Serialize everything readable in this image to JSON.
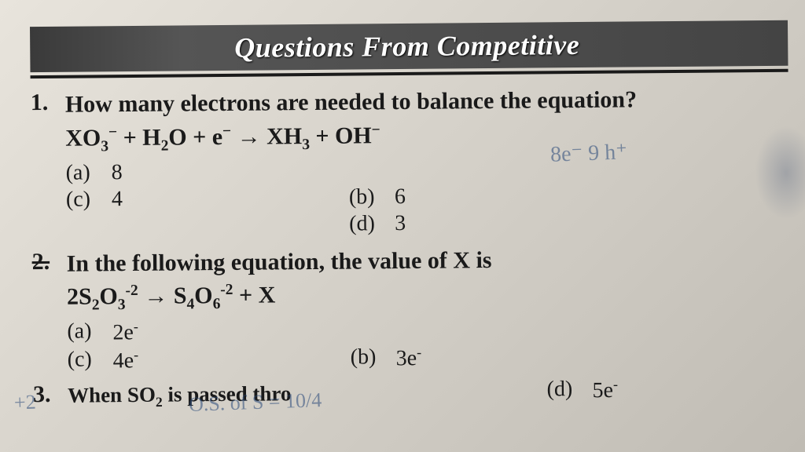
{
  "banner": {
    "title": "Questions From Competitive"
  },
  "q1": {
    "number": "1.",
    "text": "How many electrons are needed to balance the equation?",
    "equation": "XO<sub>3</sub><sup>&minus;</sup> + H<sub>2</sub>O + e<sup>&minus;</sup> &rarr; XH<sub>3</sub> + OH<sup>&minus;</sup>",
    "options": {
      "a": {
        "label": "(a)",
        "value": "8"
      },
      "b": {
        "label": "(b)",
        "value": "6"
      },
      "c": {
        "label": "(c)",
        "value": "4"
      },
      "d": {
        "label": "(d)",
        "value": "3"
      }
    }
  },
  "q2": {
    "number": "2.",
    "text": "In the following equation, the value of X is",
    "equation": "2S<sub>2</sub>O<sub>3</sub><sup>-2</sup> &rarr; S<sub>4</sub>O<sub>6</sub><sup>-2</sup> + X",
    "options": {
      "a": {
        "label": "(a)",
        "value": "2e<sup>-</sup>"
      },
      "b": {
        "label": "(b)",
        "value": "3e<sup>-</sup>"
      },
      "c": {
        "label": "(c)",
        "value": "4e<sup>-</sup>"
      },
      "d": {
        "label": "(d)",
        "value": "5e<sup>-</sup>"
      }
    }
  },
  "q3": {
    "number": "3.",
    "text_fragment": "When SO<sub>2</sub> is passed thro"
  },
  "handwriting": {
    "h1": "8e&#8315; 9 h&#8314;",
    "h2": "+2",
    "h3": "O.S. of S = 10/4"
  },
  "colors": {
    "text": "#1a1a1a",
    "banner_bg": "#3a3a3a",
    "banner_text": "#ffffff",
    "hand_color": "#2a4a7a"
  }
}
